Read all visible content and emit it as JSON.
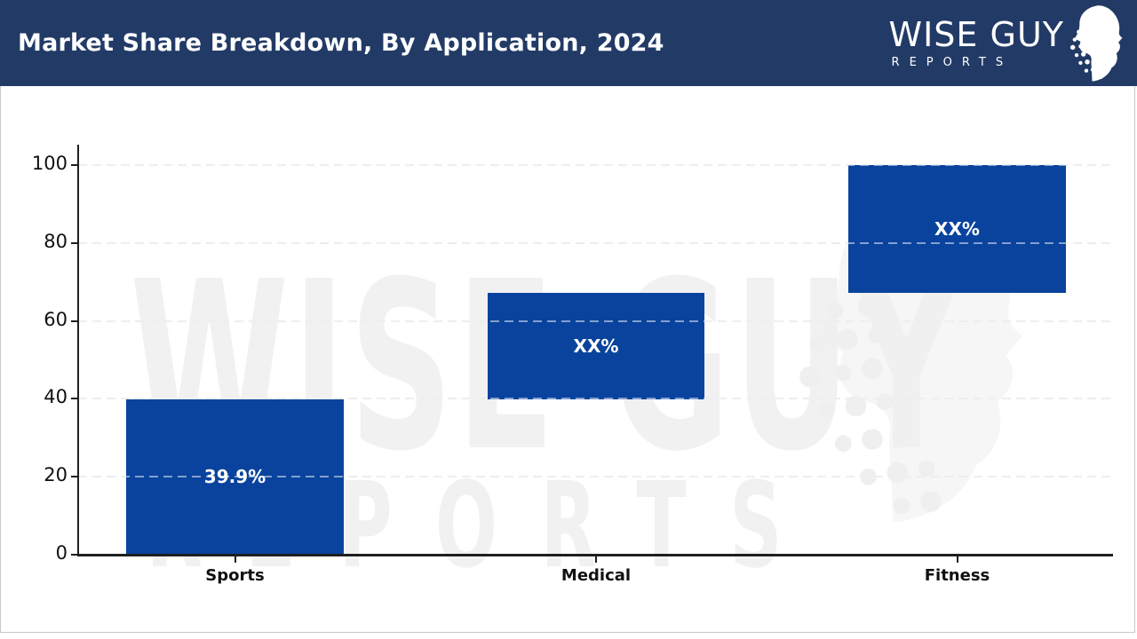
{
  "header": {
    "title": "Market Share Breakdown, By Application, 2024",
    "logo": {
      "line1": "WISE GUY",
      "line2": "REPORTS"
    }
  },
  "watermark": {
    "line1": "WISE GUY",
    "line2": "REPORTS"
  },
  "colors": {
    "header_bg": "#223A66",
    "bar": "#09439D",
    "bar_label": "#ffffff",
    "gridline": "#dcdcdc",
    "axis": "#1f1f1f",
    "watermark": "#f1f1f1"
  },
  "chart_data": {
    "type": "bar",
    "subtype": "waterfall-stacked-percent",
    "title": "Market Share Breakdown, By Application, 2024",
    "categories": [
      "Sports",
      "Medical",
      "Fitness"
    ],
    "bars": [
      {
        "category": "Sports",
        "start": 0,
        "end": 39.9,
        "label": "39.9%"
      },
      {
        "category": "Medical",
        "start": 39.9,
        "end": 67.3,
        "label": "XX%"
      },
      {
        "category": "Fitness",
        "start": 67.3,
        "end": 100,
        "label": "XX%"
      }
    ],
    "yticks": [
      0,
      20,
      40,
      60,
      80,
      100
    ],
    "ylim": [
      0,
      105
    ],
    "xlabel": "",
    "ylabel": "",
    "grid": "dashed-horizontal",
    "legend": "none"
  }
}
